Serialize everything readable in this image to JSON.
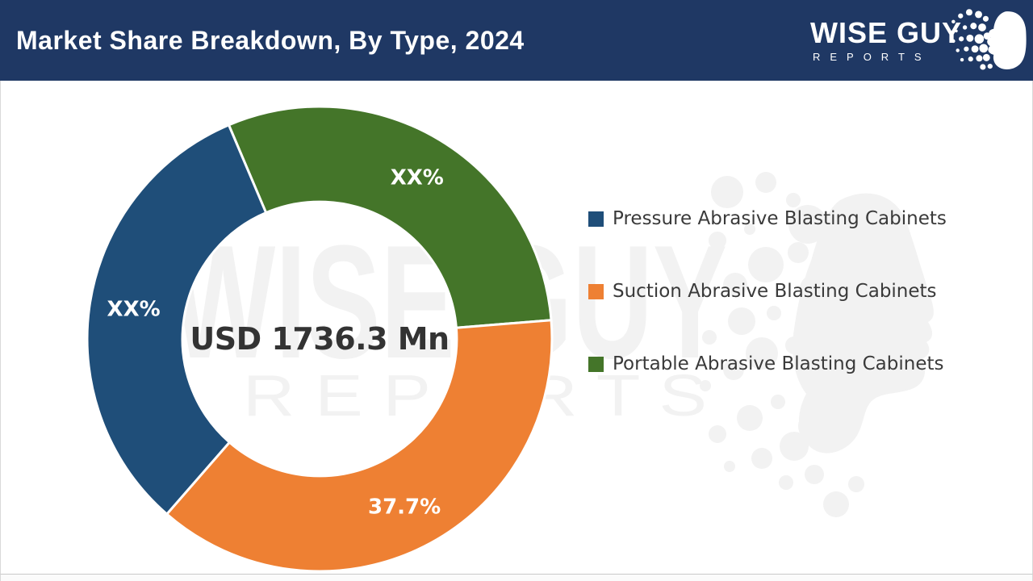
{
  "header": {
    "title": "Market Share Breakdown, By Type, 2024",
    "logo": {
      "line1": "WISE GUY",
      "line2": "REPORTS"
    }
  },
  "watermark": {
    "line1": "WISE GUY",
    "line2": "R E P O R T S"
  },
  "legend": {
    "position": "right",
    "items": [
      {
        "label": "Pressure Abrasive Blasting Cabinets",
        "color": "#1F4E79"
      },
      {
        "label": "Suction Abrasive Blasting Cabinets",
        "color": "#EE8033"
      },
      {
        "label": "Portable Abrasive Blasting Cabinets",
        "color": "#447529"
      }
    ]
  },
  "chart_data": {
    "type": "pie",
    "subtype": "donut",
    "title": "Market Share Breakdown, By Type, 2024",
    "center_label": "USD 1736.3 Mn",
    "segments": [
      {
        "name": "Portable Abrasive Blasting Cabinets",
        "display_label": "XX%",
        "share_pct": 30.1,
        "color": "#447529"
      },
      {
        "name": "Suction Abrasive Blasting Cabinets",
        "display_label": "37.7%",
        "share_pct": 37.7,
        "color": "#EE8033"
      },
      {
        "name": "Pressure Abrasive Blasting Cabinets",
        "display_label": "XX%",
        "share_pct": 32.2,
        "color": "#1F4E79"
      }
    ],
    "start_angle_clock_deg": -23,
    "donut_hole_ratio": 0.59,
    "label_radius_ratio": 0.81,
    "legend_position": "right",
    "grid": false
  },
  "colors": {
    "header_background": "#1F3864",
    "segment_blue": "#1F4E79",
    "segment_orange": "#EE8033",
    "segment_green": "#447529",
    "center_text": "#333333",
    "legend_text": "#3A3A3A",
    "watermark": "#F2F2F2"
  }
}
